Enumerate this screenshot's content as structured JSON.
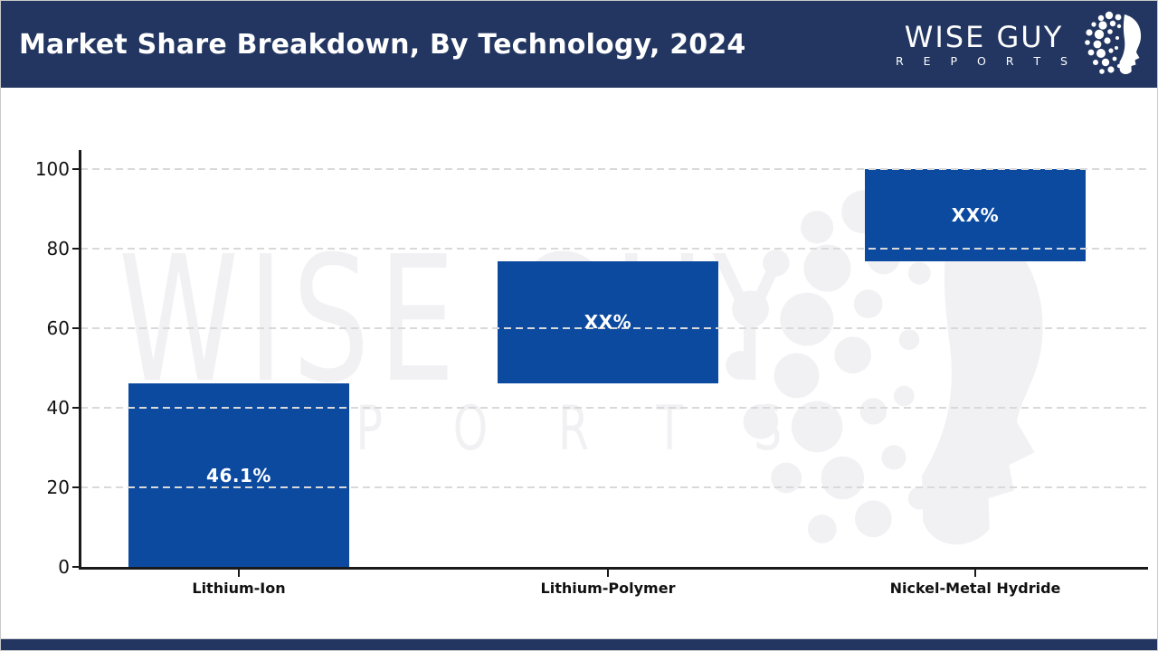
{
  "header": {
    "title": "Market Share Breakdown, By Technology, 2024",
    "logo": {
      "line1": "WISE GUY",
      "line2": "R E P O R T S"
    }
  },
  "watermark": {
    "line1": "WISE GUY",
    "line2": "REPORTS"
  },
  "chart_data": {
    "type": "bar",
    "subtype": "waterfall",
    "title": "Market Share Breakdown, By Technology, 2024",
    "categories": [
      "Lithium-Ion",
      "Lithium-Polymer",
      "Nickel-Metal Hydride"
    ],
    "segments": [
      {
        "category": "Lithium-Ion",
        "start": 0,
        "end": 46.1,
        "label": "46.1%"
      },
      {
        "category": "Lithium-Polymer",
        "start": 46.1,
        "end": 76.9,
        "label": "XX%"
      },
      {
        "category": "Nickel-Metal Hydride",
        "start": 76.9,
        "end": 100,
        "label": "XX%"
      }
    ],
    "ylim": [
      0,
      100
    ],
    "yticks": [
      0,
      20,
      40,
      60,
      80,
      100
    ],
    "xlabel": "",
    "ylabel": "",
    "grid": "horizontal-dashed-over-bars",
    "legend": "none"
  },
  "colors": {
    "header_bg": "#223661",
    "footer_bg": "#223661",
    "bar": "#0c4aa0",
    "gridline": "#d9d9d9",
    "axis": "#1a1a1a",
    "bar_label_text": "#ffffff",
    "watermark": "#f1f1f4"
  }
}
